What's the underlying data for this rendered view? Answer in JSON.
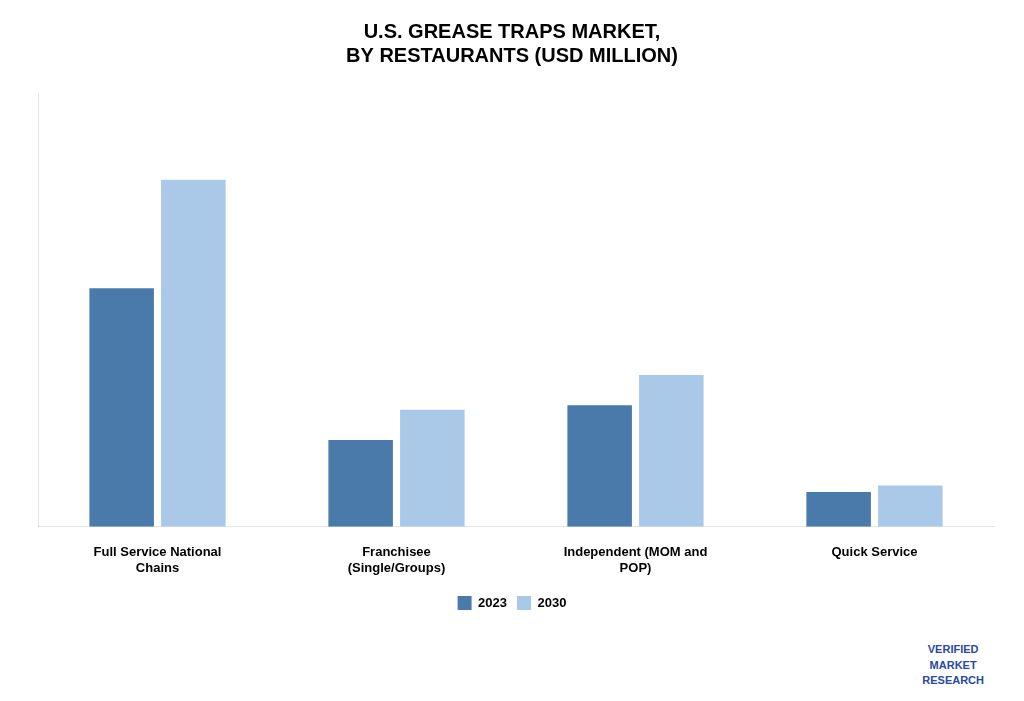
{
  "chart_data": {
    "type": "bar",
    "title": "U.S. GREASE TRAPS MARKET,\nBY RESTAURANTS (USD MILLION)",
    "categories": [
      "Full Service National\nChains",
      "Franchisee\n(Single/Groups)",
      "Independent (MOM and\nPOP)",
      "Quick Service"
    ],
    "series": [
      {
        "name": "2023",
        "color": "#4a7aaa",
        "values": [
          55,
          20,
          28,
          8
        ]
      },
      {
        "name": "2030",
        "color": "#aac8e8",
        "values": [
          80,
          27,
          35,
          9.5
        ]
      }
    ],
    "ylim": [
      0,
      100
    ],
    "grid": false,
    "legend": "bottom",
    "tick_labels": "x",
    "annotations": [
      "VERIFIED\nMARKET\nRESEARCH"
    ]
  }
}
